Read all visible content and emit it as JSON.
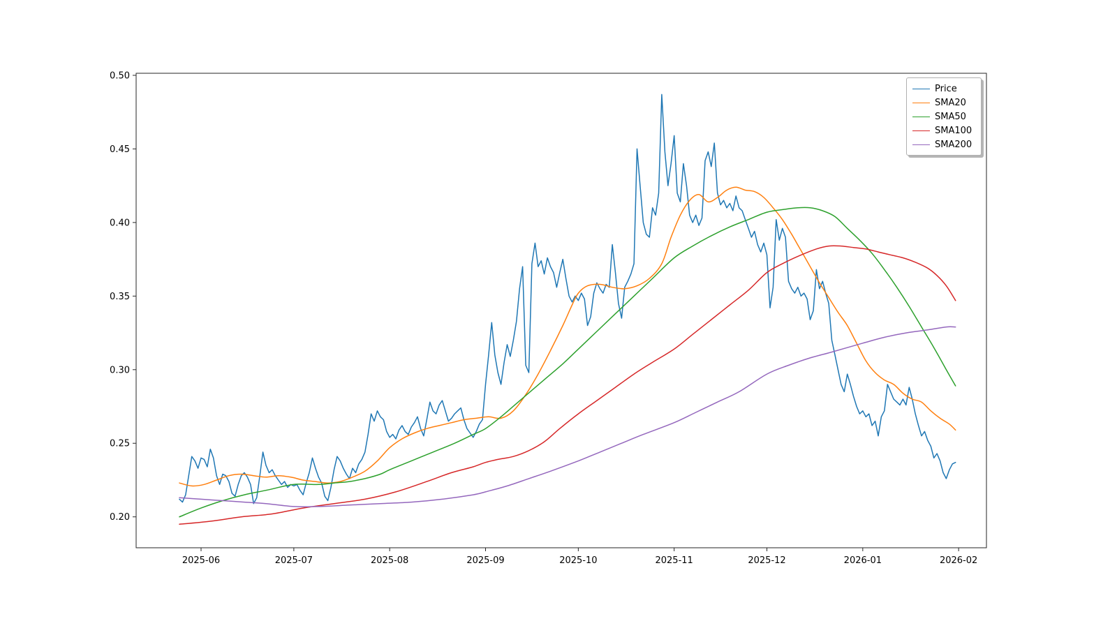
{
  "chart_data": {
    "type": "line",
    "title": "",
    "xlabel": "",
    "ylabel": "",
    "grid": false,
    "legend_position": "upper right",
    "x_note": "x values are day offsets; day 0 = first data point (late May 2025); month ticks given below",
    "x_axis": {
      "domain": [
        -14,
        261
      ],
      "ticks": [
        {
          "pos": 7,
          "label": "2025-06"
        },
        {
          "pos": 37,
          "label": "2025-07"
        },
        {
          "pos": 68,
          "label": "2025-08"
        },
        {
          "pos": 99,
          "label": "2025-09"
        },
        {
          "pos": 129,
          "label": "2025-10"
        },
        {
          "pos": 160,
          "label": "2025-11"
        },
        {
          "pos": 190,
          "label": "2025-12"
        },
        {
          "pos": 221,
          "label": "2026-01"
        },
        {
          "pos": 252,
          "label": "2026-02"
        }
      ]
    },
    "y_axis": {
      "domain": [
        0.179,
        0.5014
      ],
      "ticks": [
        {
          "pos": 0.2,
          "label": "0.20"
        },
        {
          "pos": 0.25,
          "label": "0.25"
        },
        {
          "pos": 0.3,
          "label": "0.30"
        },
        {
          "pos": 0.35,
          "label": "0.35"
        },
        {
          "pos": 0.4,
          "label": "0.40"
        },
        {
          "pos": 0.45,
          "label": "0.45"
        },
        {
          "pos": 0.5,
          "label": "0.50"
        }
      ]
    },
    "series": [
      {
        "name": "Price",
        "color": "#1f77b4",
        "x_start": 0,
        "x_step": 1,
        "y": [
          0.212,
          0.21,
          0.215,
          0.228,
          0.241,
          0.238,
          0.233,
          0.24,
          0.239,
          0.234,
          0.246,
          0.24,
          0.228,
          0.222,
          0.229,
          0.228,
          0.224,
          0.216,
          0.214,
          0.222,
          0.228,
          0.23,
          0.227,
          0.222,
          0.209,
          0.213,
          0.228,
          0.244,
          0.235,
          0.23,
          0.232,
          0.228,
          0.225,
          0.222,
          0.224,
          0.22,
          0.222,
          0.221,
          0.222,
          0.218,
          0.215,
          0.223,
          0.23,
          0.24,
          0.233,
          0.227,
          0.223,
          0.214,
          0.211,
          0.22,
          0.232,
          0.241,
          0.238,
          0.233,
          0.229,
          0.226,
          0.233,
          0.23,
          0.236,
          0.239,
          0.244,
          0.256,
          0.27,
          0.265,
          0.272,
          0.268,
          0.266,
          0.258,
          0.254,
          0.256,
          0.253,
          0.259,
          0.262,
          0.258,
          0.256,
          0.261,
          0.264,
          0.268,
          0.26,
          0.255,
          0.266,
          0.278,
          0.272,
          0.27,
          0.276,
          0.279,
          0.272,
          0.265,
          0.267,
          0.27,
          0.272,
          0.274,
          0.266,
          0.26,
          0.257,
          0.254,
          0.258,
          0.263,
          0.266,
          0.29,
          0.31,
          0.332,
          0.31,
          0.298,
          0.29,
          0.305,
          0.317,
          0.309,
          0.32,
          0.333,
          0.355,
          0.37,
          0.303,
          0.298,
          0.372,
          0.386,
          0.37,
          0.374,
          0.365,
          0.376,
          0.37,
          0.366,
          0.356,
          0.366,
          0.375,
          0.362,
          0.35,
          0.346,
          0.35,
          0.347,
          0.352,
          0.348,
          0.33,
          0.336,
          0.352,
          0.359,
          0.355,
          0.352,
          0.358,
          0.356,
          0.385,
          0.366,
          0.345,
          0.335,
          0.356,
          0.36,
          0.365,
          0.372,
          0.45,
          0.425,
          0.4,
          0.392,
          0.39,
          0.41,
          0.405,
          0.42,
          0.487,
          0.448,
          0.425,
          0.44,
          0.459,
          0.42,
          0.414,
          0.44,
          0.425,
          0.405,
          0.4,
          0.405,
          0.398,
          0.403,
          0.442,
          0.448,
          0.438,
          0.454,
          0.42,
          0.412,
          0.415,
          0.41,
          0.413,
          0.408,
          0.418,
          0.41,
          0.408,
          0.402,
          0.396,
          0.39,
          0.394,
          0.385,
          0.38,
          0.386,
          0.378,
          0.342,
          0.356,
          0.402,
          0.388,
          0.396,
          0.39,
          0.36,
          0.355,
          0.352,
          0.356,
          0.35,
          0.352,
          0.348,
          0.334,
          0.34,
          0.368,
          0.355,
          0.36,
          0.352,
          0.345,
          0.32,
          0.31,
          0.3,
          0.29,
          0.285,
          0.297,
          0.29,
          0.282,
          0.275,
          0.27,
          0.272,
          0.268,
          0.27,
          0.262,
          0.265,
          0.255,
          0.268,
          0.272,
          0.29,
          0.285,
          0.28,
          0.278,
          0.276,
          0.28,
          0.276,
          0.288,
          0.28,
          0.27,
          0.262,
          0.255,
          0.258,
          0.252,
          0.248,
          0.24,
          0.243,
          0.238,
          0.23,
          0.226,
          0.232,
          0.236,
          0.237
        ]
      },
      {
        "name": "SMA20",
        "color": "#ff7f0e",
        "smooth": true,
        "x": [
          0,
          4,
          8,
          12,
          16,
          20,
          24,
          28,
          32,
          36,
          40,
          44,
          48,
          52,
          56,
          60,
          64,
          68,
          72,
          76,
          80,
          84,
          88,
          92,
          96,
          100,
          104,
          108,
          112,
          116,
          120,
          124,
          127,
          129,
          132,
          136,
          140,
          144,
          148,
          152,
          156,
          159,
          162,
          165,
          168,
          171,
          174,
          177,
          180,
          183,
          186,
          189,
          192,
          195,
          198,
          201,
          204,
          207,
          210,
          213,
          216,
          219,
          222,
          225,
          228,
          231,
          234,
          237,
          240,
          243,
          246,
          249,
          251
        ],
        "y": [
          0.223,
          0.221,
          0.222,
          0.225,
          0.228,
          0.229,
          0.228,
          0.227,
          0.228,
          0.227,
          0.225,
          0.224,
          0.223,
          0.224,
          0.227,
          0.231,
          0.238,
          0.247,
          0.253,
          0.257,
          0.26,
          0.262,
          0.264,
          0.266,
          0.267,
          0.268,
          0.267,
          0.272,
          0.283,
          0.297,
          0.313,
          0.33,
          0.344,
          0.352,
          0.357,
          0.358,
          0.356,
          0.355,
          0.357,
          0.362,
          0.372,
          0.39,
          0.405,
          0.415,
          0.419,
          0.414,
          0.417,
          0.422,
          0.424,
          0.422,
          0.421,
          0.417,
          0.41,
          0.402,
          0.392,
          0.381,
          0.37,
          0.359,
          0.349,
          0.339,
          0.33,
          0.318,
          0.306,
          0.298,
          0.293,
          0.29,
          0.284,
          0.28,
          0.278,
          0.272,
          0.267,
          0.263,
          0.259
        ]
      },
      {
        "name": "SMA50",
        "color": "#2ca02c",
        "smooth": true,
        "x": [
          0,
          7,
          14,
          21,
          28,
          37,
          45,
          50,
          55,
          60,
          65,
          68,
          75,
          82,
          89,
          95,
          99,
          104,
          109,
          114,
          119,
          124,
          129,
          135,
          141,
          147,
          153,
          160,
          166,
          172,
          178,
          184,
          190,
          196,
          200,
          204,
          208,
          212,
          216,
          220,
          224,
          228,
          232,
          236,
          240,
          244,
          248,
          251
        ],
        "y": [
          0.2,
          0.206,
          0.211,
          0.215,
          0.218,
          0.222,
          0.222,
          0.223,
          0.224,
          0.226,
          0.229,
          0.232,
          0.238,
          0.244,
          0.25,
          0.256,
          0.26,
          0.268,
          0.277,
          0.286,
          0.295,
          0.304,
          0.314,
          0.326,
          0.338,
          0.35,
          0.362,
          0.376,
          0.384,
          0.391,
          0.397,
          0.402,
          0.407,
          0.409,
          0.41,
          0.41,
          0.408,
          0.404,
          0.396,
          0.388,
          0.379,
          0.368,
          0.356,
          0.343,
          0.329,
          0.315,
          0.3,
          0.289
        ]
      },
      {
        "name": "SMA100",
        "color": "#d62728",
        "smooth": true,
        "x": [
          0,
          10,
          20,
          30,
          40,
          50,
          60,
          70,
          80,
          88,
          95,
          99,
          103,
          108,
          113,
          118,
          123,
          129,
          135,
          141,
          147,
          153,
          160,
          166,
          172,
          178,
          184,
          190,
          195,
          200,
          206,
          210,
          214,
          218,
          222,
          226,
          230,
          234,
          238,
          242,
          245,
          248,
          251
        ],
        "y": [
          0.195,
          0.197,
          0.2,
          0.202,
          0.206,
          0.209,
          0.212,
          0.217,
          0.224,
          0.23,
          0.234,
          0.237,
          0.239,
          0.241,
          0.245,
          0.251,
          0.26,
          0.27,
          0.279,
          0.288,
          0.297,
          0.305,
          0.314,
          0.324,
          0.334,
          0.344,
          0.354,
          0.366,
          0.372,
          0.377,
          0.382,
          0.384,
          0.384,
          0.383,
          0.382,
          0.38,
          0.378,
          0.376,
          0.373,
          0.369,
          0.364,
          0.357,
          0.347
        ]
      },
      {
        "name": "SMA200",
        "color": "#9467bd",
        "smooth": true,
        "x": [
          0,
          7,
          14,
          21,
          28,
          37,
          45,
          55,
          65,
          75,
          85,
          95,
          99,
          106,
          113,
          120,
          129,
          136,
          143,
          150,
          160,
          167,
          174,
          181,
          190,
          197,
          204,
          211,
          221,
          228,
          235,
          242,
          248,
          251
        ],
        "y": [
          0.213,
          0.212,
          0.211,
          0.21,
          0.209,
          0.207,
          0.207,
          0.208,
          0.209,
          0.21,
          0.212,
          0.215,
          0.217,
          0.221,
          0.226,
          0.231,
          0.238,
          0.244,
          0.25,
          0.256,
          0.264,
          0.271,
          0.278,
          0.285,
          0.297,
          0.303,
          0.308,
          0.312,
          0.318,
          0.322,
          0.325,
          0.327,
          0.329,
          0.329
        ]
      }
    ],
    "legend_labels": [
      "Price",
      "SMA20",
      "SMA50",
      "SMA100",
      "SMA200"
    ]
  }
}
